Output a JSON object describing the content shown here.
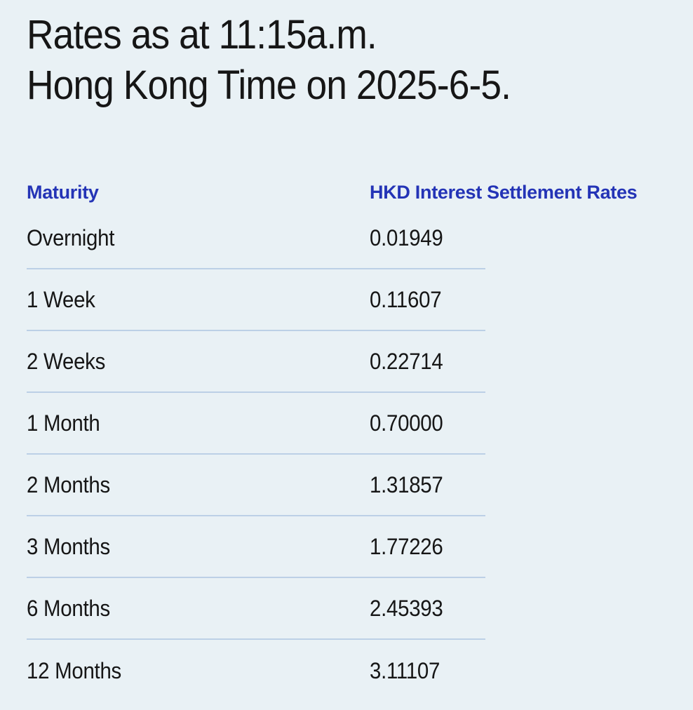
{
  "page": {
    "colors": {
      "bg": "#e9f1f5",
      "accent": "#2434b6",
      "divider": "#bcd0e6",
      "text": "#161616"
    }
  },
  "title": {
    "line1": "Rates as at 11:15a.m.",
    "line2": "Hong Kong Time on 2025-6-5."
  },
  "table": {
    "columns": {
      "maturity": "Maturity",
      "rates": "HKD Interest Settlement Rates"
    },
    "rows": [
      {
        "maturity": "Overnight",
        "rate": "0.01949"
      },
      {
        "maturity": "1 Week",
        "rate": "0.11607"
      },
      {
        "maturity": "2 Weeks",
        "rate": "0.22714"
      },
      {
        "maturity": "1 Month",
        "rate": "0.70000"
      },
      {
        "maturity": "2 Months",
        "rate": "1.31857"
      },
      {
        "maturity": "3 Months",
        "rate": "1.77226"
      },
      {
        "maturity": "6 Months",
        "rate": "2.45393"
      },
      {
        "maturity": "12 Months",
        "rate": "3.11107"
      }
    ]
  }
}
